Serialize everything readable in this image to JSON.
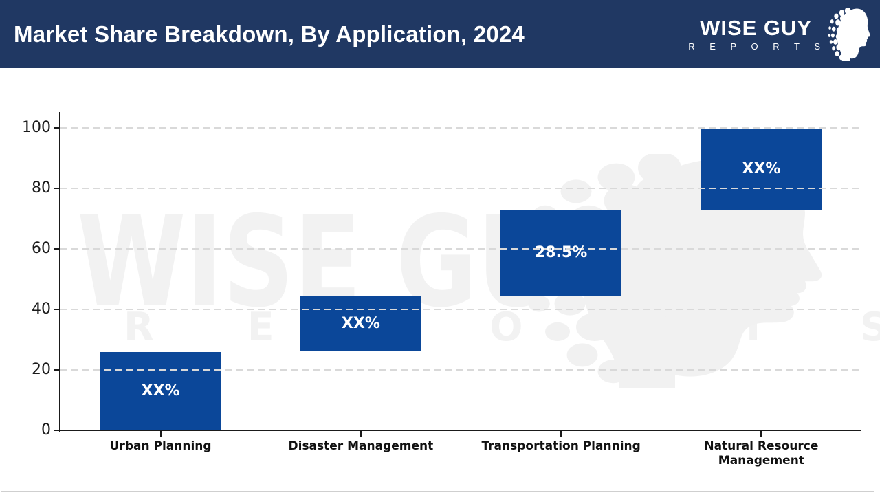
{
  "header": {
    "title": "Market Share Breakdown, By Application, 2024",
    "logo": {
      "name": "WISE GUY",
      "subtitle": "R E P O R T S"
    },
    "bg_color": "#203863"
  },
  "watermark": {
    "wordmark": "WISE GU",
    "subtitle": "R E P O R T S"
  },
  "chart_data": {
    "type": "bar",
    "subtype": "floating-waterfall",
    "title": "Market Share Breakdown, By Application, 2024",
    "categories": [
      "Urban Planning",
      "Disaster Management",
      "Transportation Planning",
      "Natural Resource Management"
    ],
    "segments": [
      {
        "category": "Urban Planning",
        "start": 0,
        "end": 26,
        "label": "XX%"
      },
      {
        "category": "Disaster Management",
        "start": 26.3,
        "end": 44.3,
        "label": "XX%"
      },
      {
        "category": "Transportation Planning",
        "start": 44.4,
        "end": 72.9,
        "label": "28.5%"
      },
      {
        "category": "Natural Resource Management",
        "start": 72.9,
        "end": 99.8,
        "label": "XX%"
      }
    ],
    "xlabel": "",
    "ylabel": "",
    "ylim": [
      0,
      100
    ],
    "yticks": [
      0,
      20,
      40,
      60,
      80,
      100
    ],
    "grid": "horizontal-dashed",
    "legend": "none",
    "bar_color": "#0b4799",
    "bar_label_color": "#ffffff",
    "axis_color": "#1a1a1a"
  }
}
